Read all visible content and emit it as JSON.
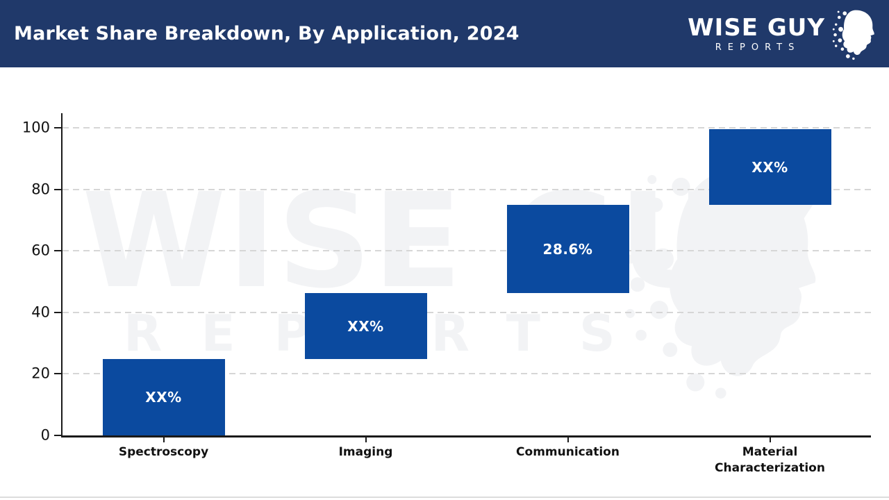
{
  "header": {
    "title": "Market Share Breakdown, By Application, 2024",
    "logo": {
      "primary": "WISE GUY",
      "secondary": "REPORTS"
    }
  },
  "watermark": {
    "primary": "WISE GUY",
    "secondary": "REPORTS"
  },
  "colors": {
    "header_bg": "#20396a",
    "bar": "#0b4a9f",
    "grid": "#d6d6d6",
    "axis": "#1a1a1a",
    "watermark": "#f2f3f5"
  },
  "chart_data": {
    "type": "bar",
    "subtype": "waterfall",
    "title": "Market Share Breakdown, By Application, 2024",
    "categories": [
      "Spectroscopy",
      "Imaging",
      "Communication",
      "Material\nCharacterization"
    ],
    "segments": [
      {
        "category": "Spectroscopy",
        "start": 0,
        "end": 24.8,
        "value": 24.8,
        "label": "XX%"
      },
      {
        "category": "Imaging",
        "start": 24.8,
        "end": 46.3,
        "value": 21.5,
        "label": "XX%"
      },
      {
        "category": "Communication",
        "start": 46.3,
        "end": 74.9,
        "value": 28.6,
        "label": "28.6%"
      },
      {
        "category": "Material Characterization",
        "start": 74.9,
        "end": 99.5,
        "value": 24.6,
        "label": "XX%"
      }
    ],
    "xlabel": "",
    "ylabel": "",
    "yticks": [
      0,
      20,
      40,
      60,
      80,
      100
    ],
    "ylim": [
      0,
      105
    ],
    "grid": "horizontal-dashed",
    "legend": "none",
    "bar_color": "#0b4a9f",
    "bar_labels": [
      "XX%",
      "XX%",
      "28.6%",
      "XX%"
    ]
  }
}
